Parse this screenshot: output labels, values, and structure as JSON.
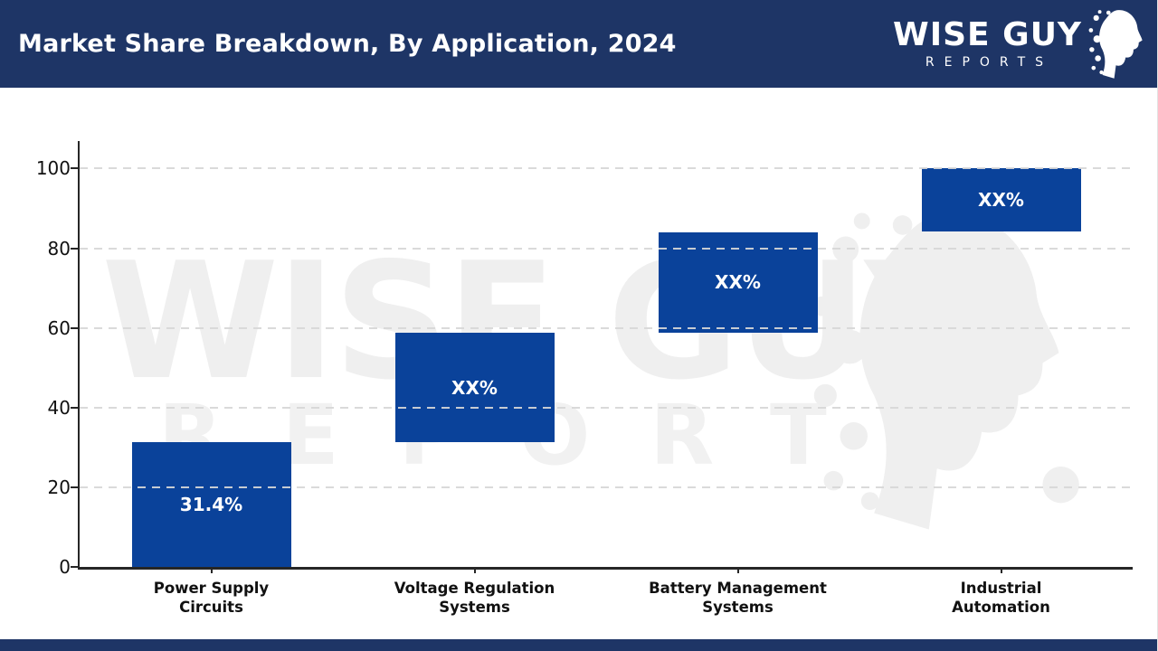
{
  "header": {
    "title": "Market Share Breakdown, By Application, 2024",
    "logo_primary": "WISE GUY",
    "logo_secondary": "REPORTS"
  },
  "watermark": {
    "primary": "WISE GUY",
    "secondary": "REPORTS"
  },
  "colors": {
    "banner": "#1e3566",
    "bar": "#0a429a",
    "axis": "#262626",
    "grid": "#d7d7d7",
    "watermark": "#efefef"
  },
  "chart_data": {
    "type": "bar",
    "subtype": "waterfall",
    "title": "Market Share Breakdown, By Application, 2024",
    "categories": [
      "Power Supply Circuits",
      "Voltage Regulation Systems",
      "Battery Management Systems",
      "Industrial Automation"
    ],
    "category_lines": [
      [
        "Power Supply",
        "Circuits"
      ],
      [
        "Voltage Regulation",
        "Systems"
      ],
      [
        "Battery Management",
        "Systems"
      ],
      [
        "Industrial",
        "Automation"
      ]
    ],
    "segments": [
      {
        "category": "Power Supply Circuits",
        "start": 0,
        "end": 31.4,
        "label": "31.4%"
      },
      {
        "category": "Voltage Regulation Systems",
        "start": 31.4,
        "end": 58.7,
        "label": "XX%"
      },
      {
        "category": "Battery Management Systems",
        "start": 58.7,
        "end": 84.1,
        "label": "XX%"
      },
      {
        "category": "Industrial Automation",
        "start": 84.1,
        "end": 100,
        "label": "XX%"
      }
    ],
    "y_ticks": [
      0,
      20,
      40,
      60,
      80,
      100
    ],
    "ylim": [
      0,
      106
    ],
    "xlabel": "",
    "ylabel": "",
    "grid": true,
    "grid_style": "dashed",
    "legend": false,
    "bar_value_label_color": "#ffffff"
  }
}
